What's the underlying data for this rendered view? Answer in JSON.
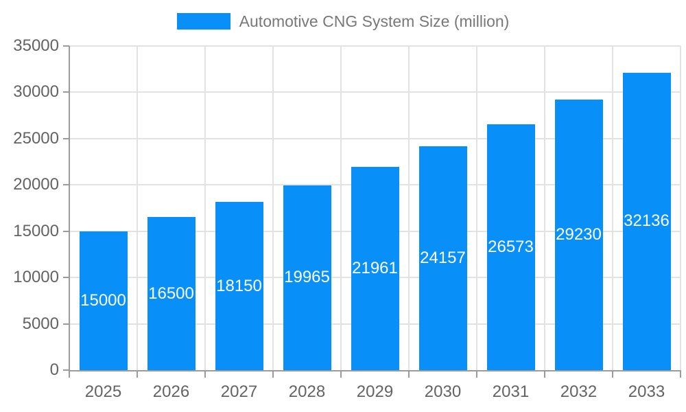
{
  "chart": {
    "legend_label": "Automotive CNG System Size (million)"
  },
  "chart_data": {
    "type": "bar",
    "title": "Automotive CNG System Size (million)",
    "categories": [
      "2025",
      "2026",
      "2027",
      "2028",
      "2029",
      "2030",
      "2031",
      "2032",
      "2033"
    ],
    "values": [
      15000,
      16500,
      18150,
      19965,
      21961,
      24157,
      26573,
      29230,
      32136
    ],
    "series_name": "Automotive CNG System Size (million)",
    "xlabel": "",
    "ylabel": "",
    "ylim": [
      0,
      35000
    ],
    "yticks": [
      0,
      5000,
      10000,
      15000,
      20000,
      25000,
      30000,
      35000
    ],
    "bar_value_labels": [
      "15000",
      "16500",
      "18150",
      "19965",
      "21961",
      "24157",
      "26573",
      "29230",
      "32136"
    ],
    "grid": true,
    "legend_position": "top-center",
    "colors": {
      "bar": "#0890f8",
      "bar_label_text": "#ffffff",
      "axis_text": "#636363",
      "legend_text": "#787878",
      "grid_line": "#e2e2e2",
      "axis_line": "#9b9b9b",
      "background": "#ffffff"
    }
  }
}
